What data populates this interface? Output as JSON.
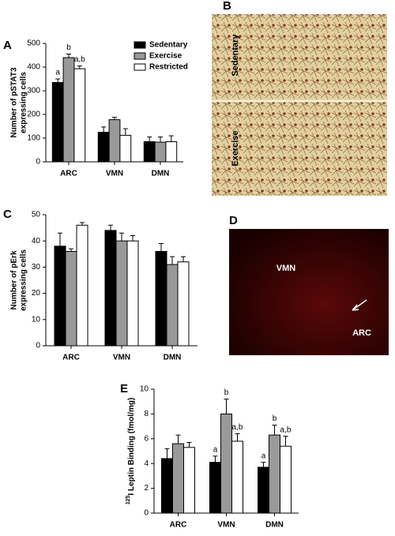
{
  "chart_data": [
    {
      "type": "bar",
      "panel": "A",
      "ylabel": [
        "Number of  pSTAT3",
        "expressing cells"
      ],
      "categories": [
        "ARC",
        "VMN",
        "DMN"
      ],
      "ylim": [
        0,
        500
      ],
      "yticks": [
        0,
        100,
        200,
        300,
        400,
        500
      ],
      "legend": "top-right",
      "series": [
        {
          "name": "Sedentary",
          "color": "#000000",
          "values": [
            335,
            125,
            85
          ],
          "errors": [
            15,
            22,
            20
          ],
          "labels": [
            "a",
            null,
            null
          ]
        },
        {
          "name": "Exercise",
          "color": "#999999",
          "values": [
            440,
            178,
            83
          ],
          "errors": [
            15,
            10,
            22
          ],
          "labels": [
            "b",
            null,
            null
          ]
        },
        {
          "name": "Restricted",
          "color": "#ffffff",
          "values": [
            393,
            112,
            85
          ],
          "errors": [
            12,
            28,
            25
          ],
          "labels": [
            "a,b",
            null,
            null
          ]
        }
      ]
    },
    {
      "type": "bar",
      "panel": "C",
      "ylabel": [
        "Number of pErk",
        "expressing cells"
      ],
      "categories": [
        "ARC",
        "VMN",
        "DMN"
      ],
      "ylim": [
        0,
        50
      ],
      "yticks": [
        0,
        10,
        20,
        30,
        40,
        50
      ],
      "series": [
        {
          "color": "#000000",
          "values": [
            38,
            44,
            36
          ],
          "errors": [
            5,
            2,
            3
          ]
        },
        {
          "color": "#999999",
          "values": [
            36,
            40,
            31
          ],
          "errors": [
            1,
            3,
            3
          ]
        },
        {
          "color": "#ffffff",
          "values": [
            46,
            40,
            32
          ],
          "errors": [
            1,
            2,
            2
          ]
        }
      ]
    },
    {
      "type": "bar",
      "panel": "E",
      "ylabel_parts": [
        "125",
        "I Leptin Binding (fmol/mg)"
      ],
      "categories": [
        "ARC",
        "VMN",
        "DMN"
      ],
      "ylim": [
        0,
        10
      ],
      "yticks": [
        0,
        2,
        4,
        6,
        8,
        10
      ],
      "series": [
        {
          "color": "#000000",
          "values": [
            4.4,
            4.1,
            3.7
          ],
          "errors": [
            0.8,
            0.5,
            0.4
          ],
          "labels": [
            null,
            "a",
            "a"
          ]
        },
        {
          "color": "#999999",
          "values": [
            5.6,
            8.0,
            6.3
          ],
          "errors": [
            0.7,
            1.2,
            0.8
          ],
          "labels": [
            null,
            "b",
            "b"
          ]
        },
        {
          "color": "#ffffff",
          "values": [
            5.3,
            5.8,
            5.4
          ],
          "errors": [
            0.4,
            0.6,
            0.8
          ],
          "labels": [
            null,
            "a,b",
            "a,b"
          ]
        }
      ]
    }
  ],
  "images": [
    {
      "panel": "B",
      "labels": [
        "Sedentary",
        "Exercise"
      ]
    },
    {
      "panel": "D",
      "labels": [
        "VMN",
        "ARC"
      ]
    }
  ]
}
